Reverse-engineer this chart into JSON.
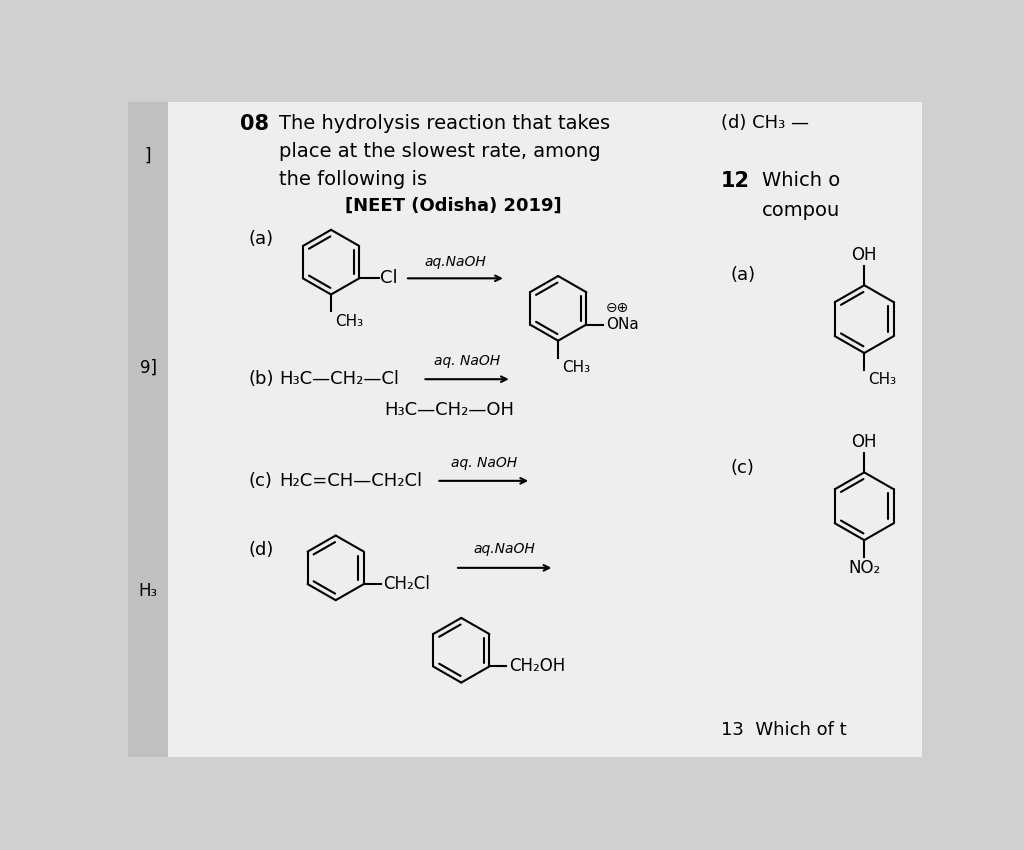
{
  "bg_color": "#d0d0d0",
  "page_bg": "#eeeeee",
  "sidebar_color": "#c0c0c0",
  "title_08": "08",
  "title_line1": "The hydrolysis reaction that takes",
  "title_line2": "place at the slowest rate, among",
  "title_line3": "the following is",
  "source": "[NEET (Odisha) 2019]",
  "right_d_text": "(d) CH₃ —",
  "right_12": "12",
  "right_which": "Which o",
  "right_compou": "compou",
  "left_bracket": "]",
  "left_9": "9]",
  "left_h3": "H₃",
  "label_a": "(a)",
  "label_b": "(b)",
  "label_c": "(c)",
  "label_d": "(d)",
  "arrow_a": "aq.NaOH",
  "arrow_b": "aq. NaOH",
  "arrow_c": "aq. NaOH",
  "arrow_d": "aq.NaOH",
  "b_reactant": "H₃C—CH₂—Cl",
  "b_product": "H₃C—CH₂—OH",
  "c_reactant": "H₂C=CH—CH₂Cl",
  "a_cl": "Cl",
  "a_ch3": "CH₃",
  "a_prod_ona": "⊖⊕\nONa",
  "a_prod_ch3": "CH₃",
  "d_reactant_sub": "—CH₂Cl",
  "d_product_sub": "—CH₂OH",
  "right_a_label": "(a)",
  "right_a_oh": "OH",
  "right_a_ch3": "CH₃",
  "right_c_label": "(c)",
  "right_c_oh": "OH",
  "right_c_no2": "NO₂",
  "bottom_13": "13  Which of t"
}
